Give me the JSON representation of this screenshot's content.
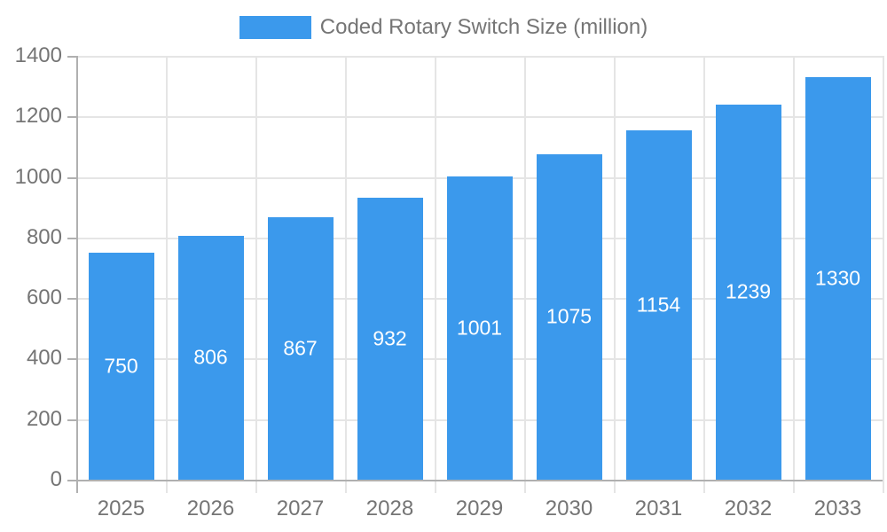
{
  "chart_data": {
    "type": "bar",
    "title": "",
    "xlabel": "",
    "ylabel": "",
    "categories": [
      "2025",
      "2026",
      "2027",
      "2028",
      "2029",
      "2030",
      "2031",
      "2032",
      "2033"
    ],
    "series": [
      {
        "name": "Coded Rotary Switch Size (million)",
        "values": [
          750,
          806,
          867,
          932,
          1001,
          1075,
          1154,
          1239,
          1330
        ]
      }
    ],
    "value_labels": [
      "750",
      "806",
      "867",
      "932",
      "1001",
      "1075",
      "1154",
      "1239",
      "1330"
    ],
    "ylim": [
      0,
      1400
    ],
    "y_tick_step": 200,
    "y_tick_labels": [
      "0",
      "200",
      "400",
      "600",
      "800",
      "1000",
      "1200",
      "1400"
    ],
    "grid": "horizontal and vertical",
    "legend_position": "top-center",
    "colors": {
      "bar": "#3B99EC",
      "axis_text": "#757575",
      "legend_text": "#757575",
      "value_label_text": "#ffffff",
      "gridline": "#e5e5e5",
      "axis_line": "#b0b0b0",
      "background": "#ffffff"
    }
  }
}
